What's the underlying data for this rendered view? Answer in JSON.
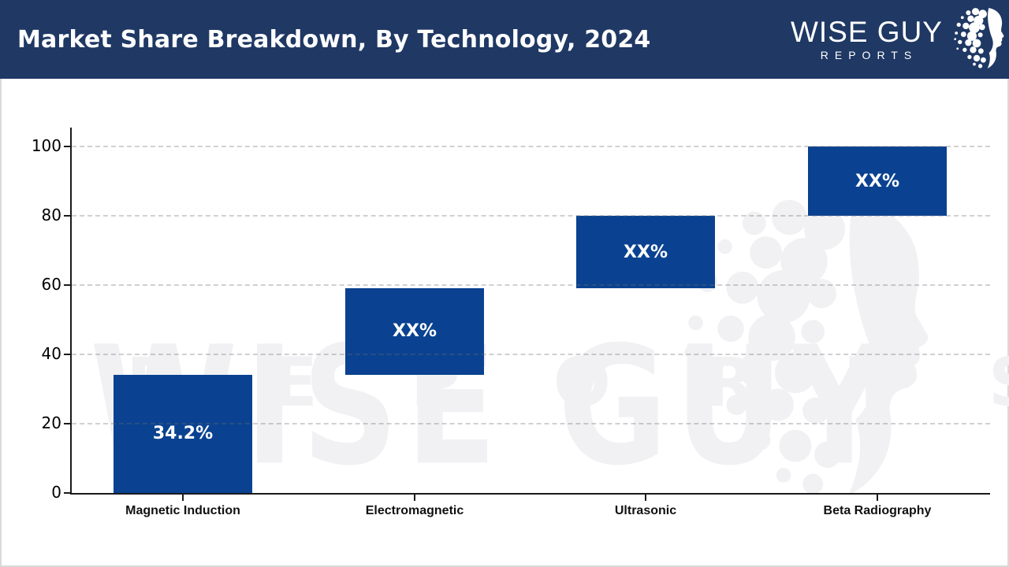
{
  "header": {
    "title": "Market Share Breakdown, By Technology, 2024",
    "background_color": "#1f3864",
    "text_color": "#ffffff"
  },
  "logo": {
    "line1": "WISE GUY",
    "line2": "REPORTS",
    "icon": "dotted-face-profile-icon",
    "color": "#ffffff"
  },
  "watermark": {
    "line1": "WISE GUY",
    "line2": "R E P O R T S",
    "icon": "dotted-face-profile-icon",
    "color": "#f1f1f3"
  },
  "chart_data": {
    "type": "bar",
    "subtype": "waterfall",
    "title": "Market Share Breakdown, By Technology, 2024",
    "categories": [
      "Magnetic Induction",
      "Electromagnetic",
      "Ultrasonic",
      "Beta Radiography"
    ],
    "segments": [
      {
        "category": "Magnetic Induction",
        "start": 0,
        "end": 34.2,
        "label": "34.2%"
      },
      {
        "category": "Electromagnetic",
        "start": 34.2,
        "end": 59,
        "label": "XX%"
      },
      {
        "category": "Ultrasonic",
        "start": 59,
        "end": 80,
        "label": "XX%"
      },
      {
        "category": "Beta Radiography",
        "start": 80,
        "end": 100,
        "label": "XX%"
      }
    ],
    "yticks": [
      0,
      20,
      40,
      60,
      80,
      100
    ],
    "ylim": [
      0,
      105
    ],
    "xlabel": "",
    "ylabel": "",
    "grid": "dashed-horizontal-on-top",
    "legend": "none",
    "bar_color": "#0a4291",
    "bar_label_color": "#ffffff",
    "axis_color": "#1a1a1a"
  }
}
